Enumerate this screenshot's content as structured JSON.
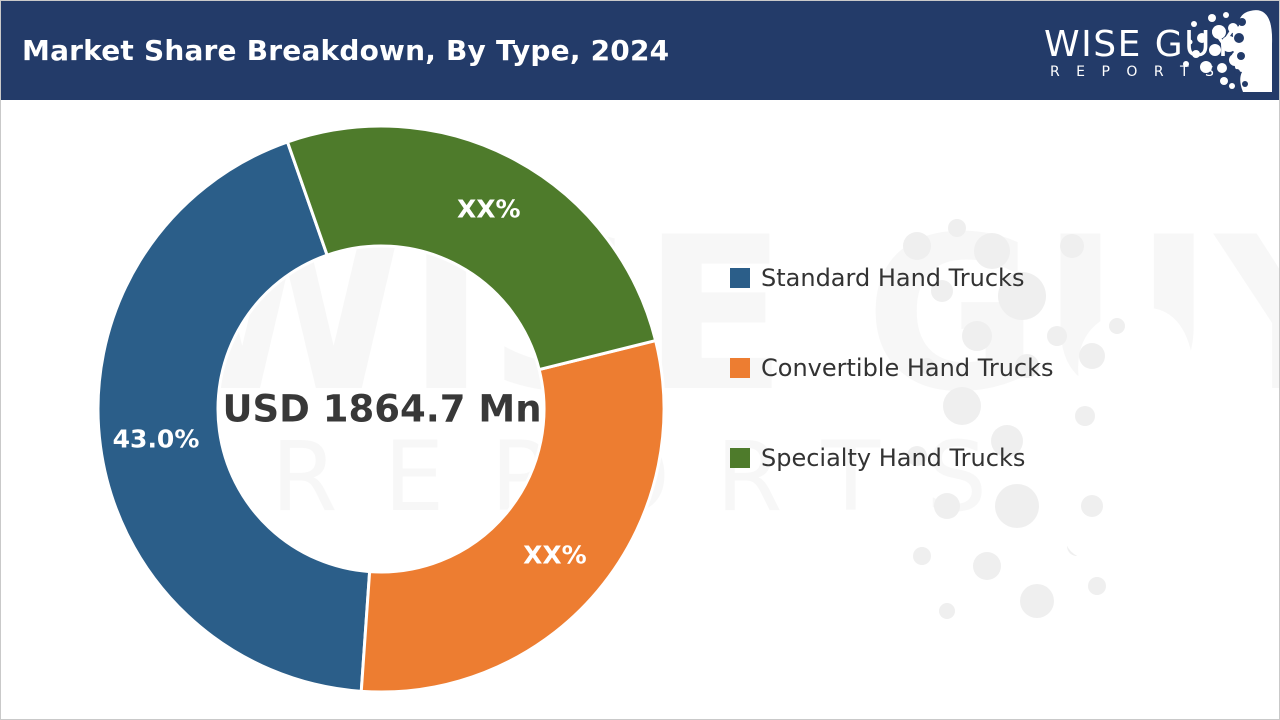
{
  "header": {
    "title": "Market Share Breakdown, By Type, 2024",
    "logo": {
      "line1": "WISE GUY",
      "line2": "R E P O R T S"
    }
  },
  "colors": {
    "header_bg": "#233b69",
    "blue": "#2b5e89",
    "orange": "#ed7d31",
    "green": "#4e7b2b",
    "text_dark": "#333333"
  },
  "chart_data": {
    "type": "pie",
    "donut": true,
    "title": "Market Share Breakdown, By Type, 2024",
    "center_label": "USD 1864.7 Mn",
    "categories": [
      "Standard Hand Trucks",
      "Convertible Hand Trucks",
      "Specialty Hand Trucks"
    ],
    "value_labels": [
      "43.0%",
      "XX%",
      "XX%"
    ],
    "values_pct_estimated": [
      43.0,
      30.0,
      27.0
    ],
    "legend_position": "right",
    "segments": [
      {
        "name": "Standard Hand Trucks",
        "label": "43.0%",
        "color": "#2b5e89",
        "start_deg": 109.3,
        "end_deg": 266.0
      },
      {
        "name": "Convertible Hand Trucks",
        "label": "XX%",
        "color": "#ed7d31",
        "start_deg": 266.0,
        "end_deg": 374.0
      },
      {
        "name": "Specialty Hand Trucks",
        "label": "XX%",
        "color": "#4e7b2b",
        "start_deg": 14.0,
        "end_deg": 109.3
      }
    ]
  },
  "legend": {
    "items": [
      {
        "label": "Standard Hand Trucks",
        "color": "#2b5e89"
      },
      {
        "label": "Convertible Hand Trucks",
        "color": "#ed7d31"
      },
      {
        "label": "Specialty Hand Trucks",
        "color": "#4e7b2b"
      }
    ]
  },
  "watermark": {
    "line1": "WISE GUY",
    "line2": "REPORTS"
  }
}
